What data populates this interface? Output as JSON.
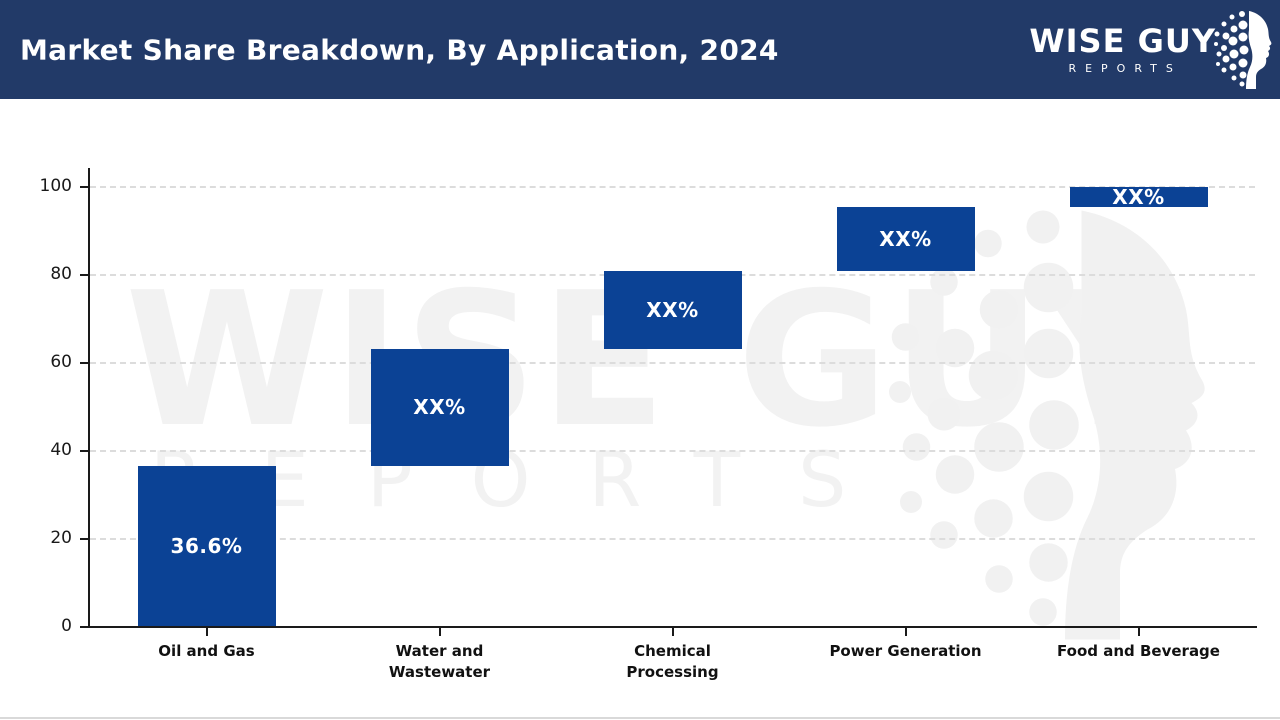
{
  "header": {
    "title": "Market Share Breakdown, By Application, 2024",
    "logo": {
      "line1": "WISE GUY",
      "line2": "REPORTS"
    }
  },
  "watermark": {
    "line1": "WISE GUY",
    "line2": "REPORTS"
  },
  "colors": {
    "header_bg": "#223a68",
    "bar": "#0b4295",
    "grid_line": "#dcdcdc",
    "axis": "#1a1a1a",
    "bar_label": "#ffffff",
    "tick_label": "#1a1a1a",
    "watermark": "#f2f2f2",
    "background": "#ffffff",
    "footer_line": "#d9d9d9"
  },
  "chart_data": {
    "type": "bar",
    "variant": "floating-segment-waterfall",
    "title": "Market Share Breakdown, By Application, 2024",
    "categories": [
      "Oil and Gas",
      "Water and Wastewater",
      "Chemical Processing",
      "Power Generation",
      "Food and Beverage"
    ],
    "category_lines": [
      [
        "Oil and Gas"
      ],
      [
        "Water and",
        "Wastewater"
      ],
      [
        "Chemical",
        "Processing"
      ],
      [
        "Power Generation"
      ],
      [
        "Food and Beverage"
      ]
    ],
    "segments": [
      {
        "category": "Oil and Gas",
        "start": 0,
        "end": 36.6,
        "label": "36.6%"
      },
      {
        "category": "Water and Wastewater",
        "start": 36.6,
        "end": 63.2,
        "label": "XX%"
      },
      {
        "category": "Chemical Processing",
        "start": 63.2,
        "end": 81.0,
        "label": "XX%"
      },
      {
        "category": "Power Generation",
        "start": 81.0,
        "end": 95.5,
        "label": "XX%"
      },
      {
        "category": "Food and Beverage",
        "start": 95.5,
        "end": 100,
        "label": "XX%"
      }
    ],
    "ylim": [
      0,
      100
    ],
    "yticks": [
      0,
      20,
      40,
      60,
      80,
      100
    ],
    "grid": "horizontal dashed",
    "legend": "none"
  }
}
